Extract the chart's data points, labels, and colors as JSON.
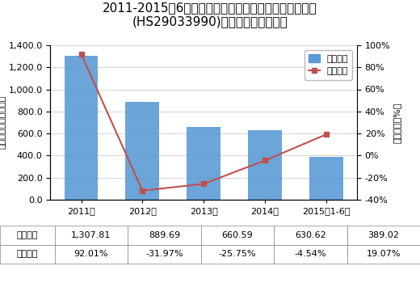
{
  "title_line1": "2011-2015年6月其他无环烃的氟化、溴化或碘化衍生物",
  "title_line2": "(HS29033990)出口总额及增速统计",
  "categories": [
    "2011年",
    "2012年",
    "2013年",
    "2014年",
    "2015年1-6月"
  ],
  "bar_values": [
    1307.81,
    889.69,
    660.59,
    630.62,
    389.02
  ],
  "line_values": [
    92.01,
    -31.97,
    -25.75,
    -4.54,
    19.07
  ],
  "bar_color": "#5B9BD5",
  "line_color": "#C0504D",
  "marker_color": "#C0504D",
  "ylabel_left": "出口金额（百万美元）",
  "ylabel_right": "同比增速（%）",
  "ylim_left": [
    0,
    1400
  ],
  "ylim_right": [
    -40,
    100
  ],
  "yticks_left": [
    0.0,
    200.0,
    400.0,
    600.0,
    800.0,
    1000.0,
    1200.0,
    1400.0
  ],
  "yticks_right": [
    -40,
    -20,
    0,
    20,
    40,
    60,
    80,
    100
  ],
  "ytick_labels_right": [
    "-40%",
    "-20%",
    "0%",
    "20%",
    "40%",
    "60%",
    "80%",
    "100%"
  ],
  "legend_bar": "出口金额",
  "legend_line": "同比增长",
  "table_row1_label": "出口金额",
  "table_row2_label": "同比增长",
  "table_row1": [
    "1,307.81",
    "889.69",
    "660.59",
    "630.62",
    "389.02"
  ],
  "table_row2": [
    "92.01%",
    "-31.97%",
    "-25.75%",
    "-4.54%",
    "19.07%"
  ],
  "grid_color": "#CCCCCC",
  "title_fontsize": 11,
  "axis_label_fontsize": 8,
  "tick_fontsize": 8,
  "legend_fontsize": 8,
  "table_fontsize": 8
}
